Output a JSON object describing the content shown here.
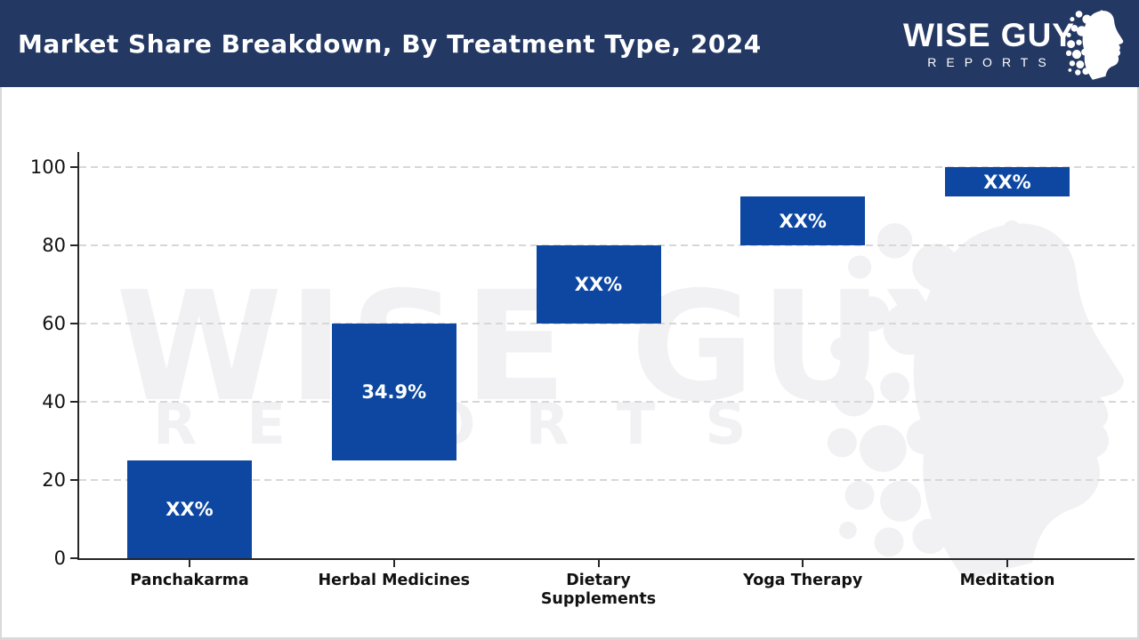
{
  "header": {
    "title": "Market Share Breakdown, By Treatment Type, 2024",
    "brand": {
      "name": "WISE GUY",
      "subtitle": "REPORTS"
    }
  },
  "watermark": {
    "line1": "WISE GUY",
    "line2": "REPORTS"
  },
  "colors": {
    "header_bg": "#233863",
    "bar": "#0d47a1",
    "bar_label": "#ffffff",
    "watermark": "#f1f1f3",
    "gridline": "#d7d7d7",
    "axis": "#262626"
  },
  "chart_data": {
    "type": "bar",
    "subtype": "waterfall",
    "title": "Market Share Breakdown, By Treatment Type, 2024",
    "xlabel": "",
    "ylabel": "",
    "categories": [
      "Panchakarma",
      "Herbal Medicines",
      "Dietary\nSupplements",
      "Yoga Therapy",
      "Meditation"
    ],
    "series": [
      {
        "name": "Market Share (%)",
        "segments": [
          {
            "category": "Panchakarma",
            "base": 0,
            "top": 25,
            "label": "XX%"
          },
          {
            "category": "Herbal Medicines",
            "base": 25,
            "top": 59.9,
            "label": "34.9%"
          },
          {
            "category": "Dietary Supplements",
            "base": 59.9,
            "top": 80,
            "label": "XX%"
          },
          {
            "category": "Yoga Therapy",
            "base": 80,
            "top": 92.5,
            "label": "XX%"
          },
          {
            "category": "Meditation",
            "base": 92.5,
            "top": 100,
            "label": "XX%"
          }
        ]
      }
    ],
    "yticks": [
      0,
      20,
      40,
      60,
      80,
      100
    ],
    "ylim": [
      0,
      104
    ],
    "grid": "horizontal-dashed",
    "legend": "none"
  }
}
